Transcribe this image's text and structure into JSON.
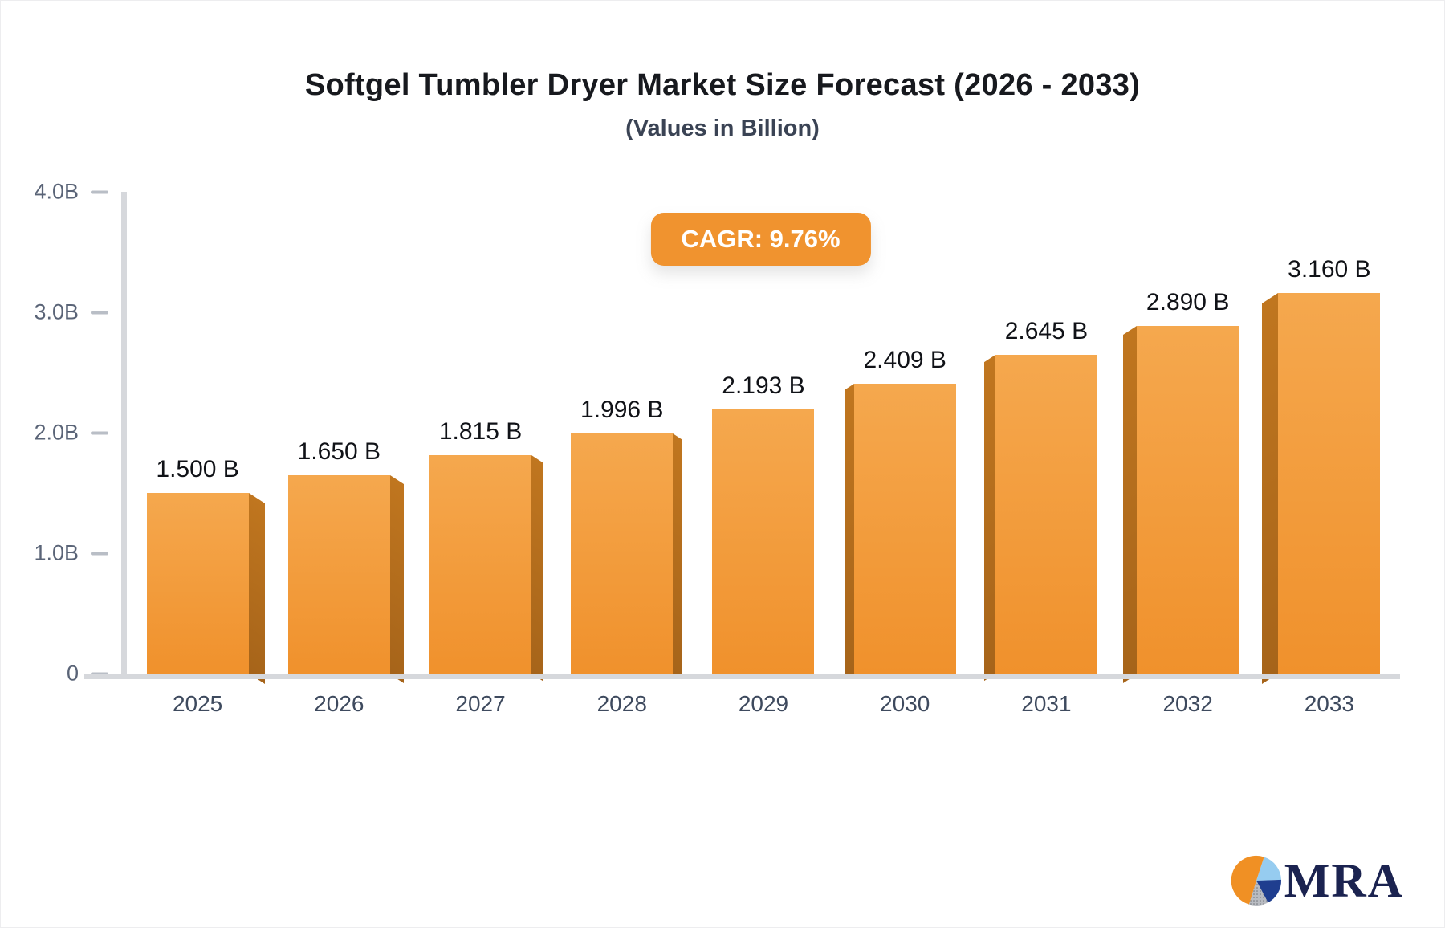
{
  "chart_data": {
    "type": "bar",
    "title": "Softgel Tumbler Dryer Market Size Forecast (2026 - 2033)",
    "subtitle": "(Values in Billion)",
    "annotation": "CAGR: 9.76%",
    "cagr_percent": 9.76,
    "categories": [
      "2025",
      "2026",
      "2027",
      "2028",
      "2029",
      "2030",
      "2031",
      "2032",
      "2033"
    ],
    "values": [
      1.5,
      1.65,
      1.815,
      1.996,
      2.193,
      2.409,
      2.645,
      2.89,
      3.16
    ],
    "display_labels": [
      "1.500 B",
      "1.650 B",
      "1.815 B",
      "1.996 B",
      "2.193 B",
      "2.409 B",
      "2.645 B",
      "2.890 B",
      "3.160 B"
    ],
    "xlabel": "",
    "ylabel": "",
    "ylim": [
      0,
      4.0
    ],
    "ytick_labels": [
      "4.0B",
      "3.0B",
      "2.0B",
      "1.0B",
      "0"
    ],
    "grid": false,
    "legend": false,
    "bar_style": "3d-extruded"
  },
  "colors": {
    "bar_face_top": "#f5a84e",
    "bar_face_bottom": "#f0912c",
    "bar_side_top": "#c0761f",
    "bar_side_bottom": "#a6641a",
    "badge_bg": "#f0932f",
    "axis": "#d6d8dc",
    "accent_navy": "#1b2350",
    "logo_orange": "#f09024",
    "logo_lightblue": "#96ccf0",
    "logo_blue": "#1f3e8f",
    "logo_gray": "#b9bcc2"
  },
  "logo": {
    "text": "MRA"
  }
}
